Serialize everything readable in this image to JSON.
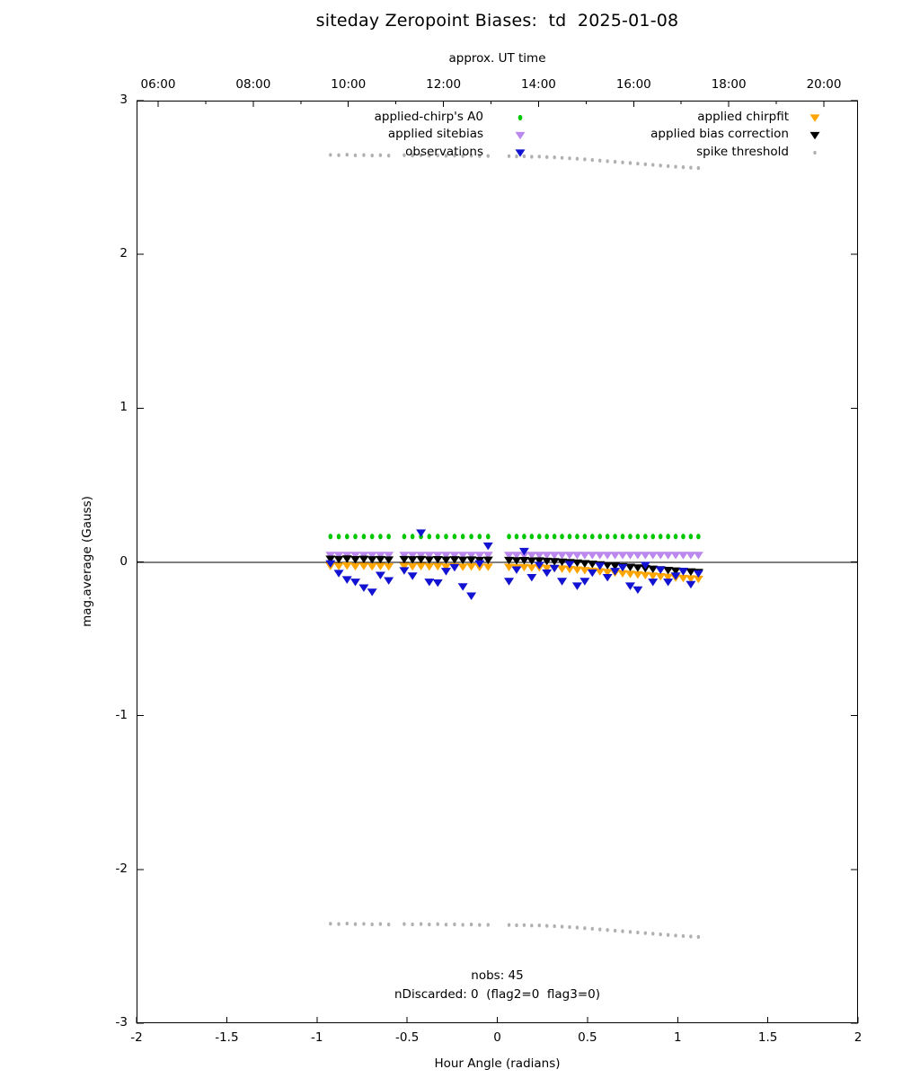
{
  "title": "siteday Zeropoint Biases:  td  2025-01-08",
  "top_axis": {
    "label": "approx. UT time",
    "tick_labels": [
      "06:00",
      "08:00",
      "10:00",
      "12:00",
      "14:00",
      "16:00",
      "18:00",
      "20:00"
    ]
  },
  "x_axis": {
    "label": "Hour Angle (radians)",
    "tick_labels": [
      "-2",
      "-1.5",
      "-1",
      "-0.5",
      "0",
      "0.5",
      "1",
      "1.5",
      "2"
    ]
  },
  "y_axis": {
    "label": "mag.average (Gauss)",
    "tick_labels": [
      "3",
      "2",
      "1",
      "0",
      "-1",
      "-2",
      "-3"
    ]
  },
  "annotations": {
    "nobs_line": "nobs: 45",
    "ndiscarded_line": "nDiscarded: 0  (flag2=0  flag3=0)"
  },
  "legend": {
    "left": [
      {
        "label": "applied-chirp's A0",
        "marker": "dot",
        "color": "#00c800"
      },
      {
        "label": "applied sitebias",
        "marker": "triangle",
        "color": "#bb88ee"
      },
      {
        "label": "observations",
        "marker": "triangle",
        "color": "#1212d2"
      }
    ],
    "right": [
      {
        "label": "applied chirpfit",
        "marker": "triangle",
        "color": "#ffa500"
      },
      {
        "label": "applied bias correction",
        "marker": "triangle",
        "color": "#000000"
      },
      {
        "label": "spike threshold",
        "marker": "smalldot",
        "color": "#b0b0b0"
      }
    ]
  },
  "colors": {
    "green": "#00c800",
    "orange": "#ffa500",
    "purple": "#bb88ee",
    "blue": "#1212d2",
    "black": "#000000",
    "gray": "#b0b0b0",
    "axis": "#000000"
  },
  "chart_data": {
    "type": "scatter",
    "title": "siteday Zeropoint Biases:  td  2025-01-08",
    "xlabel": "Hour Angle (radians)",
    "ylabel": "mag.average (Gauss)",
    "top_xlabel": "approx. UT time",
    "xlim": [
      -2,
      2
    ],
    "ylim": [
      -3,
      3
    ],
    "x_ticks": [
      -2,
      -1.5,
      -1,
      -0.5,
      0,
      0.5,
      1,
      1.5,
      2
    ],
    "y_ticks": [
      3,
      2,
      1,
      0,
      -1,
      -2,
      -3
    ],
    "ut_hours": [
      6,
      7,
      8,
      9,
      10,
      11,
      12,
      13,
      14,
      15,
      16,
      17,
      18,
      19,
      20
    ],
    "nobs": 45,
    "nDiscarded": 0,
    "x": [
      -0.925,
      -0.879,
      -0.833,
      -0.787,
      -0.74,
      -0.694,
      -0.648,
      -0.602,
      -0.516,
      -0.47,
      -0.423,
      -0.377,
      -0.33,
      -0.284,
      -0.237,
      -0.191,
      -0.144,
      -0.098,
      -0.051,
      0.065,
      0.107,
      0.149,
      0.191,
      0.233,
      0.275,
      0.317,
      0.359,
      0.401,
      0.443,
      0.485,
      0.527,
      0.569,
      0.611,
      0.653,
      0.695,
      0.737,
      0.779,
      0.821,
      0.863,
      0.905,
      0.947,
      0.989,
      1.031,
      1.073,
      1.115
    ],
    "series": [
      {
        "id": "applied_chirp_a0",
        "name": "applied-chirp's A0",
        "marker": "dot",
        "color": "#00c800",
        "values": [
          0.165,
          0.165,
          0.165,
          0.165,
          0.165,
          0.165,
          0.165,
          0.165,
          0.165,
          0.165,
          0.165,
          0.165,
          0.165,
          0.165,
          0.165,
          0.165,
          0.165,
          0.165,
          0.165,
          0.165,
          0.165,
          0.165,
          0.165,
          0.165,
          0.165,
          0.165,
          0.165,
          0.165,
          0.165,
          0.165,
          0.165,
          0.165,
          0.165,
          0.165,
          0.165,
          0.165,
          0.165,
          0.165,
          0.165,
          0.165,
          0.165,
          0.165,
          0.165,
          0.165,
          0.165
        ]
      },
      {
        "id": "applied_chirpfit",
        "name": "applied chirpfit",
        "marker": "triangle",
        "color": "#ffa500",
        "values": [
          -0.026,
          -0.027,
          -0.024,
          -0.028,
          -0.026,
          -0.029,
          -0.027,
          -0.03,
          -0.027,
          -0.029,
          -0.027,
          -0.03,
          -0.028,
          -0.031,
          -0.029,
          -0.032,
          -0.03,
          -0.033,
          -0.032,
          -0.033,
          -0.035,
          -0.034,
          -0.037,
          -0.036,
          -0.039,
          -0.041,
          -0.044,
          -0.047,
          -0.05,
          -0.054,
          -0.058,
          -0.062,
          -0.066,
          -0.07,
          -0.074,
          -0.078,
          -0.082,
          -0.086,
          -0.09,
          -0.094,
          -0.098,
          -0.102,
          -0.105,
          -0.108,
          -0.111
        ]
      },
      {
        "id": "applied_sitebias",
        "name": "applied sitebias",
        "marker": "triangle",
        "color": "#bb88ee",
        "values": [
          0.045,
          0.045,
          0.045,
          0.045,
          0.045,
          0.045,
          0.045,
          0.045,
          0.045,
          0.045,
          0.045,
          0.045,
          0.045,
          0.045,
          0.045,
          0.045,
          0.045,
          0.045,
          0.045,
          0.045,
          0.045,
          0.045,
          0.045,
          0.045,
          0.045,
          0.045,
          0.045,
          0.045,
          0.045,
          0.045,
          0.045,
          0.045,
          0.045,
          0.045,
          0.045,
          0.045,
          0.045,
          0.045,
          0.045,
          0.045,
          0.045,
          0.045,
          0.045,
          0.045,
          0.045
        ]
      },
      {
        "id": "applied_bias_correction",
        "name": "applied bias correction",
        "marker": "triangle",
        "color": "#000000",
        "values": [
          0.02,
          0.018,
          0.021,
          0.017,
          0.019,
          0.016,
          0.018,
          0.015,
          0.018,
          0.016,
          0.018,
          0.015,
          0.017,
          0.014,
          0.016,
          0.013,
          0.015,
          0.012,
          0.013,
          0.012,
          0.01,
          0.011,
          0.008,
          0.009,
          0.006,
          0.004,
          0.001,
          -0.002,
          -0.005,
          -0.009,
          -0.013,
          -0.017,
          -0.021,
          -0.025,
          -0.029,
          -0.033,
          -0.037,
          -0.041,
          -0.045,
          -0.049,
          -0.053,
          -0.057,
          -0.06,
          -0.063,
          -0.066
        ]
      },
      {
        "id": "observations",
        "name": "observations",
        "marker": "triangle",
        "color": "#1212d2",
        "values": [
          -0.01,
          -0.073,
          -0.114,
          -0.13,
          -0.167,
          -0.195,
          -0.085,
          -0.12,
          -0.055,
          -0.09,
          0.19,
          -0.13,
          -0.135,
          -0.06,
          -0.035,
          -0.16,
          -0.22,
          -0.01,
          0.105,
          -0.125,
          -0.05,
          0.07,
          -0.1,
          -0.02,
          -0.07,
          -0.04,
          -0.125,
          -0.015,
          -0.155,
          -0.125,
          -0.07,
          -0.025,
          -0.1,
          -0.06,
          -0.035,
          -0.155,
          -0.18,
          -0.02,
          -0.13,
          -0.05,
          -0.13,
          -0.09,
          -0.06,
          -0.145,
          -0.075
        ]
      },
      {
        "id": "spike_threshold_hi",
        "name": "spike threshold",
        "marker": "smalldot",
        "color": "#b0b0b0",
        "values": [
          2.647,
          2.645,
          2.648,
          2.644,
          2.646,
          2.643,
          2.645,
          2.642,
          2.645,
          2.643,
          2.645,
          2.642,
          2.644,
          2.641,
          2.643,
          2.64,
          2.642,
          2.639,
          2.64,
          2.639,
          2.637,
          2.638,
          2.635,
          2.636,
          2.633,
          2.631,
          2.628,
          2.625,
          2.622,
          2.618,
          2.614,
          2.61,
          2.606,
          2.602,
          2.598,
          2.594,
          2.59,
          2.586,
          2.582,
          2.578,
          2.574,
          2.57,
          2.567,
          2.564,
          2.561
        ]
      },
      {
        "id": "spike_threshold_lo",
        "name": "spike threshold",
        "marker": "smalldot",
        "color": "#b0b0b0",
        "values": [
          -2.353,
          -2.355,
          -2.352,
          -2.356,
          -2.354,
          -2.357,
          -2.355,
          -2.358,
          -2.355,
          -2.357,
          -2.355,
          -2.358,
          -2.356,
          -2.359,
          -2.357,
          -2.36,
          -2.358,
          -2.361,
          -2.36,
          -2.361,
          -2.363,
          -2.362,
          -2.365,
          -2.364,
          -2.367,
          -2.369,
          -2.372,
          -2.375,
          -2.378,
          -2.382,
          -2.386,
          -2.39,
          -2.394,
          -2.398,
          -2.402,
          -2.406,
          -2.41,
          -2.414,
          -2.418,
          -2.422,
          -2.426,
          -2.43,
          -2.433,
          -2.436,
          -2.439
        ]
      }
    ]
  }
}
